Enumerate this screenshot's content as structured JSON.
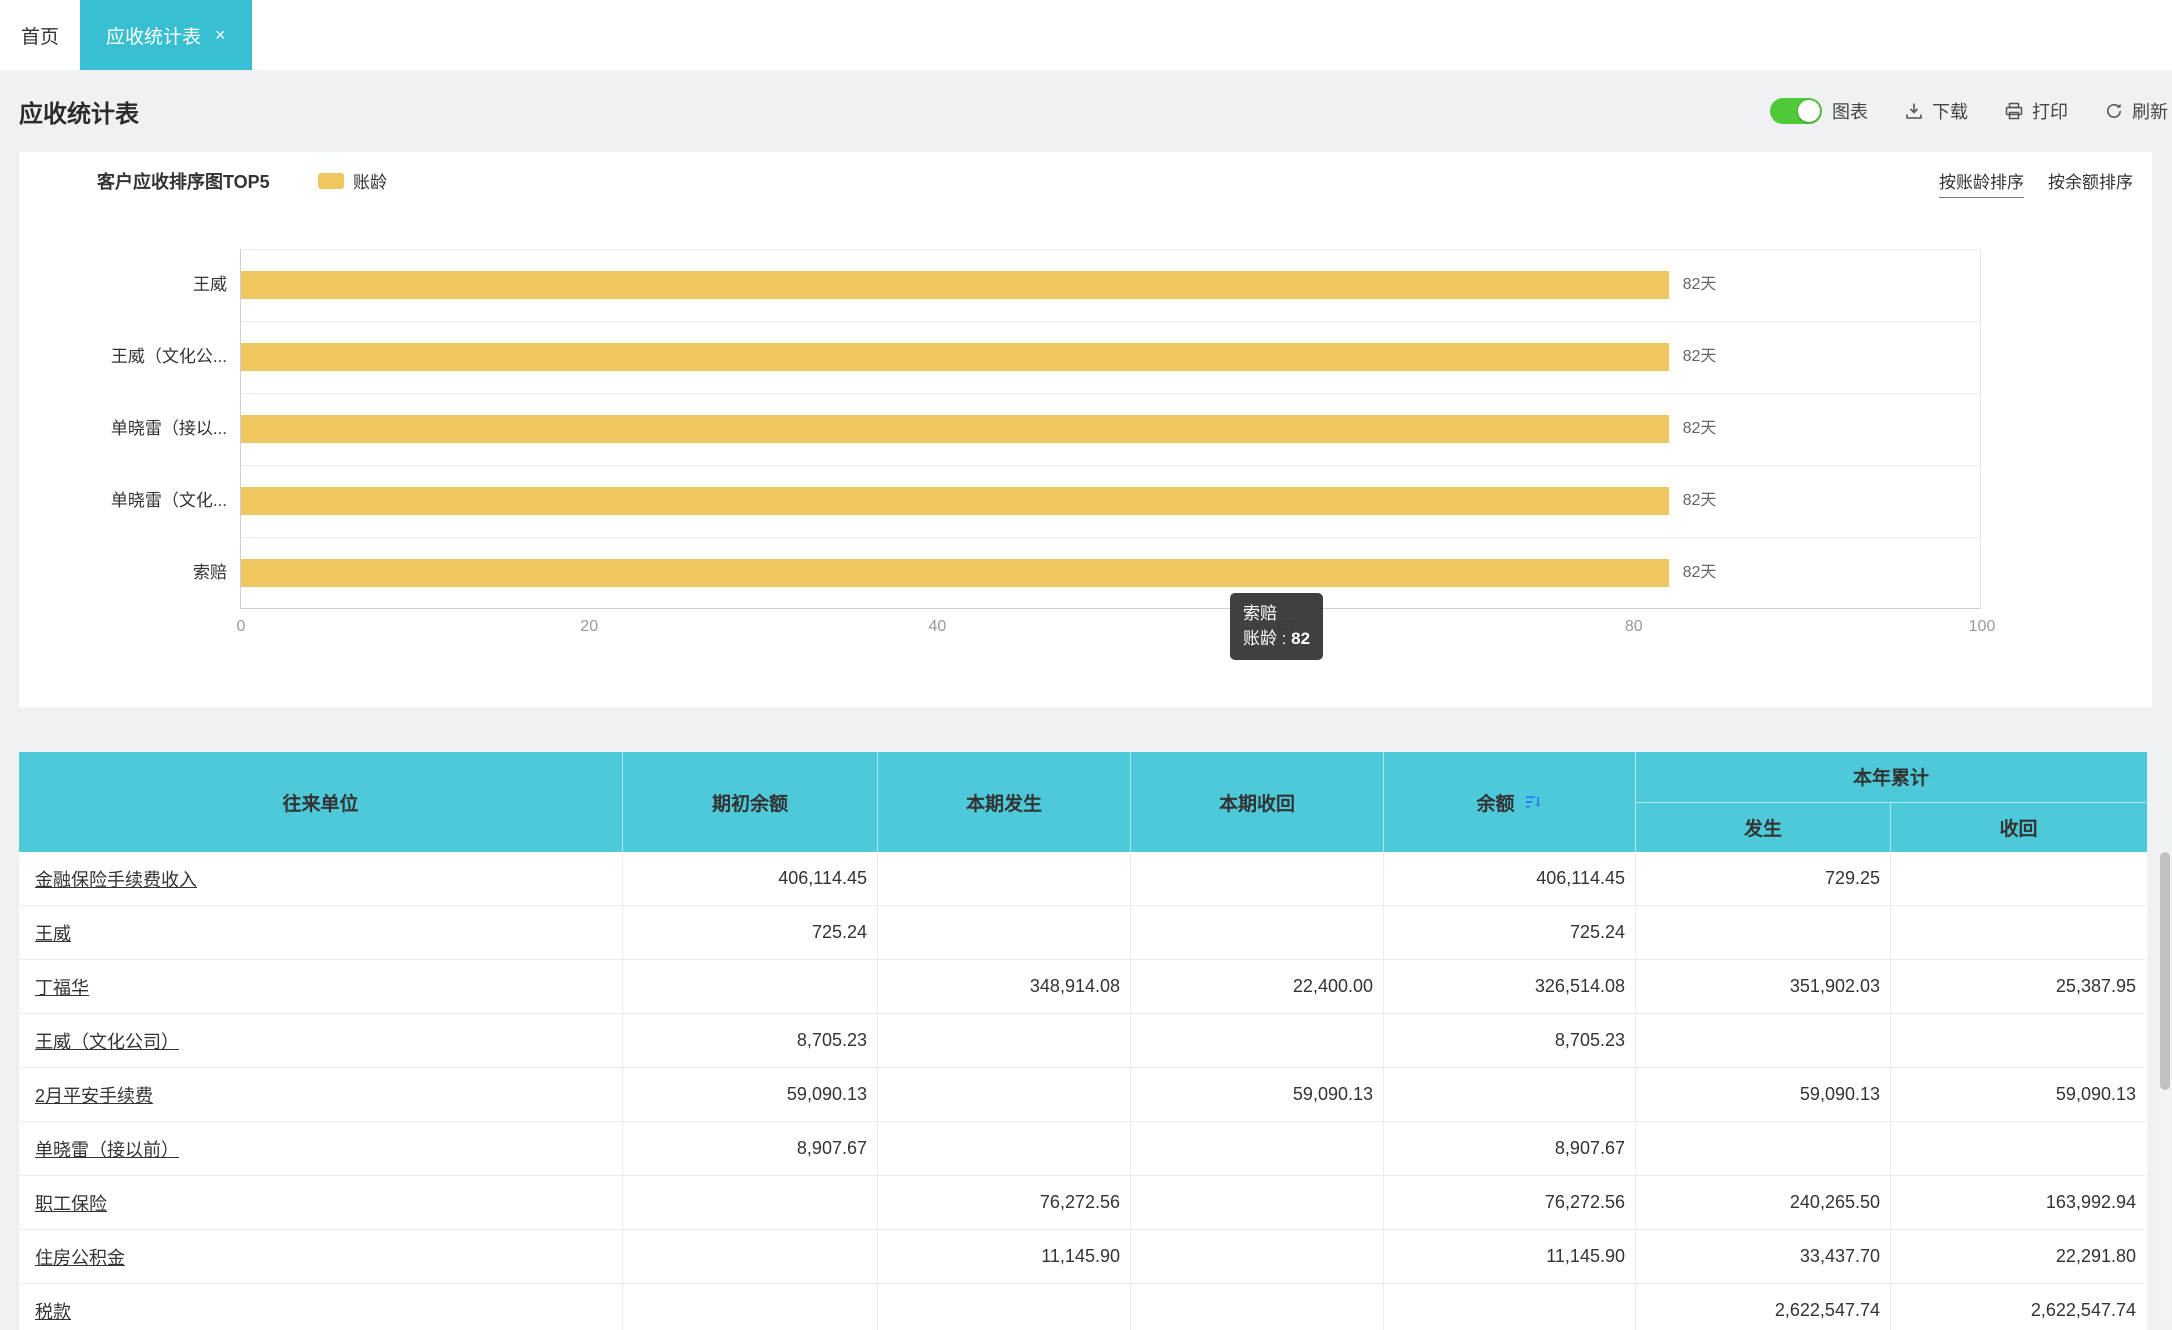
{
  "tabs": {
    "home": "首页",
    "active": {
      "label": "应收统计表",
      "close": "×"
    }
  },
  "toolbar": {
    "title": "应收统计表",
    "chart_toggle_label": "图表",
    "chart_toggle_state": "on",
    "download_label": "下载",
    "print_label": "打印",
    "refresh_label": "刷新"
  },
  "chart": {
    "title": "客户应收排序图TOP5",
    "legend_label": "账龄",
    "sort_age_label": "按账龄排序",
    "sort_balance_label": "按余额排序",
    "active_sort": "按账龄排序",
    "tooltip": {
      "title": "索赔",
      "label_prefix": "账龄 : ",
      "value": "82"
    }
  },
  "chart_data": {
    "type": "bar",
    "orientation": "horizontal",
    "title": "客户应收排序图TOP5",
    "categories": [
      "王威",
      "王威（文化公...",
      "单晓雷（接以...",
      "单晓雷（文化...",
      "索赔"
    ],
    "series": [
      {
        "name": "账龄",
        "values": [
          82,
          82,
          82,
          82,
          82
        ]
      }
    ],
    "value_labels": [
      "82天",
      "82天",
      "82天",
      "82天",
      "82天"
    ],
    "xlabel": "",
    "ylabel": "",
    "xlim": [
      0,
      100
    ],
    "xticks": [
      0,
      20,
      40,
      60,
      80,
      100
    ],
    "bar_color": "#f0c75e",
    "grid": true,
    "legend_position": "top-left"
  },
  "table": {
    "columns": {
      "unit": "往来单位",
      "opening": "期初余额",
      "current_incurred": "本期发生",
      "current_recovered": "本期收回",
      "balance": "余额",
      "ytd_group": "本年累计",
      "ytd_incurred": "发生",
      "ytd_recovered": "收回"
    },
    "rows": [
      [
        "金融保险手续费收入",
        "406,114.45",
        "",
        "",
        "406,114.45",
        "729.25",
        ""
      ],
      [
        "王威",
        "725.24",
        "",
        "",
        "725.24",
        "",
        ""
      ],
      [
        "丁福华",
        "",
        "348,914.08",
        "22,400.00",
        "326,514.08",
        "351,902.03",
        "25,387.95"
      ],
      [
        "王威（文化公司）",
        "8,705.23",
        "",
        "",
        "8,705.23",
        "",
        ""
      ],
      [
        "2月平安手续费",
        "59,090.13",
        "",
        "59,090.13",
        "",
        "59,090.13",
        "59,090.13"
      ],
      [
        "单晓雷（接以前）",
        "8,907.67",
        "",
        "",
        "8,907.67",
        "",
        ""
      ],
      [
        "职工保险",
        "",
        "76,272.56",
        "",
        "76,272.56",
        "240,265.50",
        "163,992.94"
      ],
      [
        "住房公积金",
        "",
        "11,145.90",
        "",
        "11,145.90",
        "33,437.70",
        "22,291.80"
      ],
      [
        "税款",
        "",
        "",
        "",
        "",
        "2,622,547.74",
        "2,622,547.74"
      ]
    ]
  },
  "colors": {
    "tab_active": "#38bfd2",
    "table_header": "#4ec9d9",
    "bar_yellow": "#f0c75e",
    "toggle_green": "#4fc83a",
    "sort_icon_blue": "#2f7cf6",
    "page_background": "#f0f1f2"
  }
}
